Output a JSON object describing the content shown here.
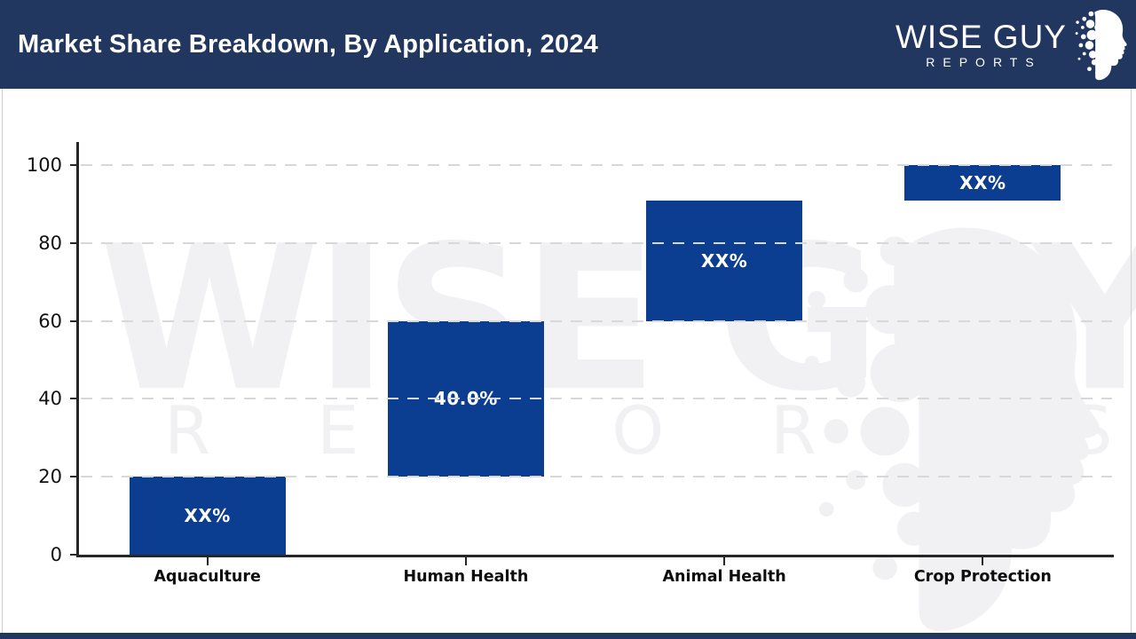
{
  "header": {
    "title": "Market Share Breakdown, By Application, 2024",
    "logo": {
      "name_line": "WISE GUY",
      "sub_line": "REPORTS"
    }
  },
  "watermark": {
    "line1": "WISE GUY",
    "line2": "R E P O R T S"
  },
  "colors": {
    "header_bg": "#21375f",
    "bar_fill": "#0b3d91",
    "bar_label": "#ffffff",
    "grid_line": "#d8d8d8",
    "axis_line": "#262626",
    "tick_label": "#111111",
    "watermark": "#f1f1f3",
    "page_bg": "#ffffff"
  },
  "chart_data": {
    "type": "bar",
    "subtype": "waterfall",
    "title": "Market Share Breakdown, By Application, 2024",
    "categories": [
      "Aquaculture",
      "Human Health",
      "Animal Health",
      "Crop Protection"
    ],
    "bars": [
      {
        "category": "Aquaculture",
        "start": 0,
        "end": 20,
        "label": "XX%"
      },
      {
        "category": "Human Health",
        "start": 20,
        "end": 60,
        "label": "40.0%"
      },
      {
        "category": "Animal Health",
        "start": 60,
        "end": 91,
        "label": "XX%"
      },
      {
        "category": "Crop Protection",
        "start": 91,
        "end": 100,
        "label": "XX%"
      }
    ],
    "ylim": [
      0,
      105
    ],
    "yticks": [
      0,
      20,
      40,
      60,
      80,
      100
    ],
    "xlabel": "",
    "ylabel": "",
    "grid": "dashed-horizontal",
    "legend": null
  }
}
